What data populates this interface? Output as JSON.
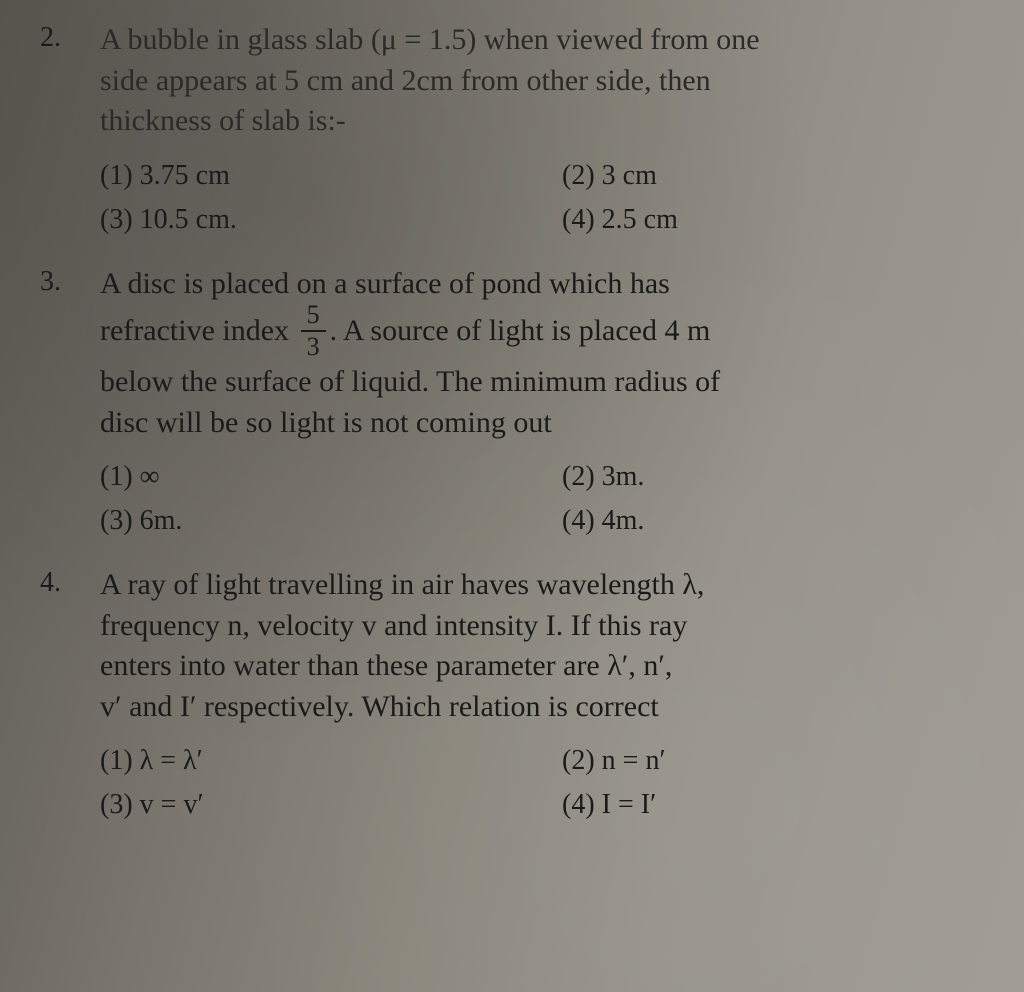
{
  "questions": [
    {
      "number": "2.",
      "text_parts": {
        "line1": "A bubble in glass slab (μ = 1.5) when viewed from one",
        "line2": "side appears at 5 cm and 2cm from other side, then",
        "line3": "thickness of slab is:-"
      },
      "options": {
        "opt1": "(1) 3.75 cm",
        "opt2": "(2) 3 cm",
        "opt3": "(3) 10.5 cm.",
        "opt4": "(4) 2.5 cm"
      },
      "text_color": "#2a2a28",
      "font_size": 30
    },
    {
      "number": "3.",
      "text_parts": {
        "line1_a": "A disc is placed on a surface of pond which has",
        "line2_a": "refractive index ",
        "frac_num": "5",
        "frac_den": "3",
        "line2_b": ". A source of light is placed 4 m",
        "line3": "below the surface of liquid. The minimum radius of",
        "line4": "disc will be so light is not coming out"
      },
      "options": {
        "opt1": "(1) ∞",
        "opt2": "(2) 3m.",
        "opt3": "(3) 6m.",
        "opt4": "(4) 4m."
      },
      "text_color": "#1a1a1a",
      "font_size": 30
    },
    {
      "number": "4.",
      "text_parts": {
        "line1": "A ray of light travelling in air haves wavelength λ,",
        "line2": "frequency n, velocity v and intensity I. If this ray",
        "line3": "enters into water than these parameter are λ′, n′,",
        "line4": "v′ and I′ respectively. Which relation is correct"
      },
      "options": {
        "opt1": "(1) λ = λ′",
        "opt2": "(2) n = n′",
        "opt3": "(3) v = v′",
        "opt4": "(4) I = I′"
      },
      "text_color": "#1a1a1a",
      "font_size": 30
    }
  ],
  "page_style": {
    "background_gradient_start": "#5a5850",
    "background_gradient_end": "#a09c94",
    "primary_text_color": "#1a1a1a",
    "font_family": "Times New Roman",
    "question_number_size": 28,
    "question_text_size": 30,
    "option_text_size": 28,
    "line_height": 1.35
  }
}
